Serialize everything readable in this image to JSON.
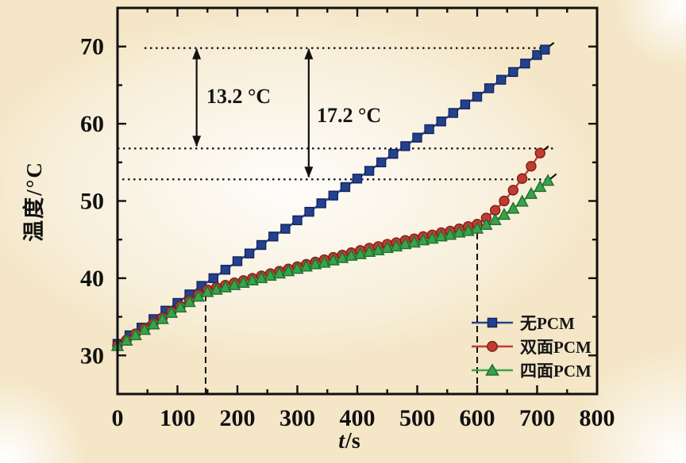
{
  "figure": {
    "background_color": "#f4e6c6",
    "axis_color": "#111111"
  },
  "chart_data": {
    "type": "line",
    "title": "",
    "xlabel_var": "t",
    "xlabel_unit": "/s",
    "ylabel": "温度/°C",
    "xlim": [
      0,
      800
    ],
    "ylim": [
      25,
      75
    ],
    "x_major_ticks": [
      0,
      100,
      200,
      300,
      400,
      500,
      600,
      700,
      800
    ],
    "x_minor_step": 50,
    "y_major_ticks": [
      30,
      40,
      50,
      60,
      70
    ],
    "y_minor_step": 5,
    "grid": "off",
    "legend_position": "lower right",
    "series": [
      {
        "key": "no-pcm",
        "name": "无PCM",
        "marker": "square",
        "color": "#24418e",
        "edge": "#14255c",
        "points": [
          [
            0,
            31.5
          ],
          [
            20,
            32.6
          ],
          [
            40,
            33.6
          ],
          [
            60,
            34.7
          ],
          [
            80,
            35.8
          ],
          [
            100,
            36.8
          ],
          [
            120,
            37.9
          ],
          [
            140,
            39.0
          ],
          [
            160,
            40.0
          ],
          [
            180,
            41.1
          ],
          [
            200,
            42.2
          ],
          [
            220,
            43.2
          ],
          [
            240,
            44.3
          ],
          [
            260,
            45.4
          ],
          [
            280,
            46.4
          ],
          [
            300,
            47.5
          ],
          [
            320,
            48.6
          ],
          [
            340,
            49.7
          ],
          [
            360,
            50.7
          ],
          [
            380,
            51.8
          ],
          [
            400,
            52.9
          ],
          [
            420,
            53.9
          ],
          [
            440,
            55.0
          ],
          [
            460,
            56.1
          ],
          [
            480,
            57.1
          ],
          [
            500,
            58.2
          ],
          [
            520,
            59.3
          ],
          [
            540,
            60.3
          ],
          [
            560,
            61.4
          ],
          [
            580,
            62.5
          ],
          [
            600,
            63.5
          ],
          [
            620,
            64.6
          ],
          [
            640,
            65.7
          ],
          [
            660,
            66.7
          ],
          [
            680,
            67.8
          ],
          [
            700,
            68.9
          ],
          [
            713,
            69.6
          ]
        ]
      },
      {
        "key": "double-side-pcm",
        "name": "双面PCM",
        "marker": "circle",
        "color": "#c23b32",
        "edge": "#7e1f1a",
        "points": [
          [
            0,
            31.3
          ],
          [
            15,
            32.0
          ],
          [
            30,
            32.8
          ],
          [
            45,
            33.5
          ],
          [
            60,
            34.2
          ],
          [
            75,
            34.9
          ],
          [
            90,
            35.7
          ],
          [
            105,
            36.4
          ],
          [
            120,
            37.1
          ],
          [
            135,
            37.9
          ],
          [
            150,
            38.5
          ],
          [
            165,
            38.8
          ],
          [
            180,
            39.1
          ],
          [
            195,
            39.4
          ],
          [
            210,
            39.7
          ],
          [
            225,
            40.0
          ],
          [
            240,
            40.3
          ],
          [
            255,
            40.6
          ],
          [
            270,
            40.9
          ],
          [
            285,
            41.2
          ],
          [
            300,
            41.5
          ],
          [
            315,
            41.8
          ],
          [
            330,
            42.1
          ],
          [
            345,
            42.4
          ],
          [
            360,
            42.7
          ],
          [
            375,
            43.0
          ],
          [
            390,
            43.3
          ],
          [
            405,
            43.6
          ],
          [
            420,
            43.9
          ],
          [
            435,
            44.1
          ],
          [
            450,
            44.4
          ],
          [
            465,
            44.6
          ],
          [
            480,
            44.9
          ],
          [
            495,
            45.1
          ],
          [
            510,
            45.4
          ],
          [
            525,
            45.6
          ],
          [
            540,
            45.9
          ],
          [
            555,
            46.1
          ],
          [
            570,
            46.4
          ],
          [
            585,
            46.7
          ],
          [
            600,
            47.0
          ],
          [
            615,
            47.8
          ],
          [
            630,
            48.8
          ],
          [
            645,
            50.0
          ],
          [
            660,
            51.4
          ],
          [
            675,
            52.9
          ],
          [
            690,
            54.5
          ],
          [
            705,
            56.2
          ]
        ]
      },
      {
        "key": "four-side-pcm",
        "name": "四面PCM",
        "marker": "triangle",
        "color": "#3ba24a",
        "edge": "#1d6e2e",
        "points": [
          [
            0,
            31.2
          ],
          [
            15,
            31.9
          ],
          [
            30,
            32.6
          ],
          [
            45,
            33.3
          ],
          [
            60,
            34.0
          ],
          [
            75,
            34.7
          ],
          [
            90,
            35.5
          ],
          [
            105,
            36.2
          ],
          [
            120,
            36.9
          ],
          [
            135,
            37.6
          ],
          [
            150,
            38.2
          ],
          [
            165,
            38.5
          ],
          [
            180,
            38.8
          ],
          [
            195,
            39.1
          ],
          [
            210,
            39.4
          ],
          [
            225,
            39.7
          ],
          [
            240,
            40.0
          ],
          [
            255,
            40.3
          ],
          [
            270,
            40.6
          ],
          [
            285,
            40.9
          ],
          [
            300,
            41.2
          ],
          [
            315,
            41.5
          ],
          [
            330,
            41.8
          ],
          [
            345,
            42.0
          ],
          [
            360,
            42.3
          ],
          [
            375,
            42.6
          ],
          [
            390,
            42.9
          ],
          [
            405,
            43.1
          ],
          [
            420,
            43.4
          ],
          [
            435,
            43.6
          ],
          [
            450,
            43.9
          ],
          [
            465,
            44.1
          ],
          [
            480,
            44.4
          ],
          [
            495,
            44.6
          ],
          [
            510,
            44.9
          ],
          [
            525,
            45.1
          ],
          [
            540,
            45.4
          ],
          [
            555,
            45.6
          ],
          [
            570,
            45.9
          ],
          [
            585,
            46.1
          ],
          [
            600,
            46.4
          ],
          [
            615,
            46.9
          ],
          [
            630,
            47.5
          ],
          [
            645,
            48.2
          ],
          [
            660,
            49.0
          ],
          [
            675,
            49.9
          ],
          [
            690,
            50.9
          ],
          [
            705,
            51.8
          ],
          [
            718,
            52.6
          ]
        ]
      }
    ],
    "annotations": [
      {
        "label": "13.2 °C",
        "arrow_x": 132,
        "from": 70,
        "to": 56.8
      },
      {
        "label": "17.2 °C",
        "arrow_x": 319,
        "from": 70,
        "to": 52.8
      }
    ],
    "reference_lines": {
      "dotted_h": [
        {
          "y": 69.8,
          "x1": 45,
          "x2": 712
        },
        {
          "y": 56.8,
          "x1": 0,
          "x2": 727
        },
        {
          "y": 52.8,
          "x1": 8,
          "x2": 723
        }
      ],
      "dashed_v": [
        {
          "x": 147,
          "y1": 25,
          "y2": 38.3
        },
        {
          "x": 600,
          "y1": 25,
          "y2": 46.4
        }
      ],
      "end_dashes": [
        [
          713,
          69.6,
          728,
          70.5
        ],
        [
          705,
          56.2,
          719,
          57.1
        ],
        [
          718,
          52.6,
          732,
          53.5
        ]
      ]
    }
  }
}
